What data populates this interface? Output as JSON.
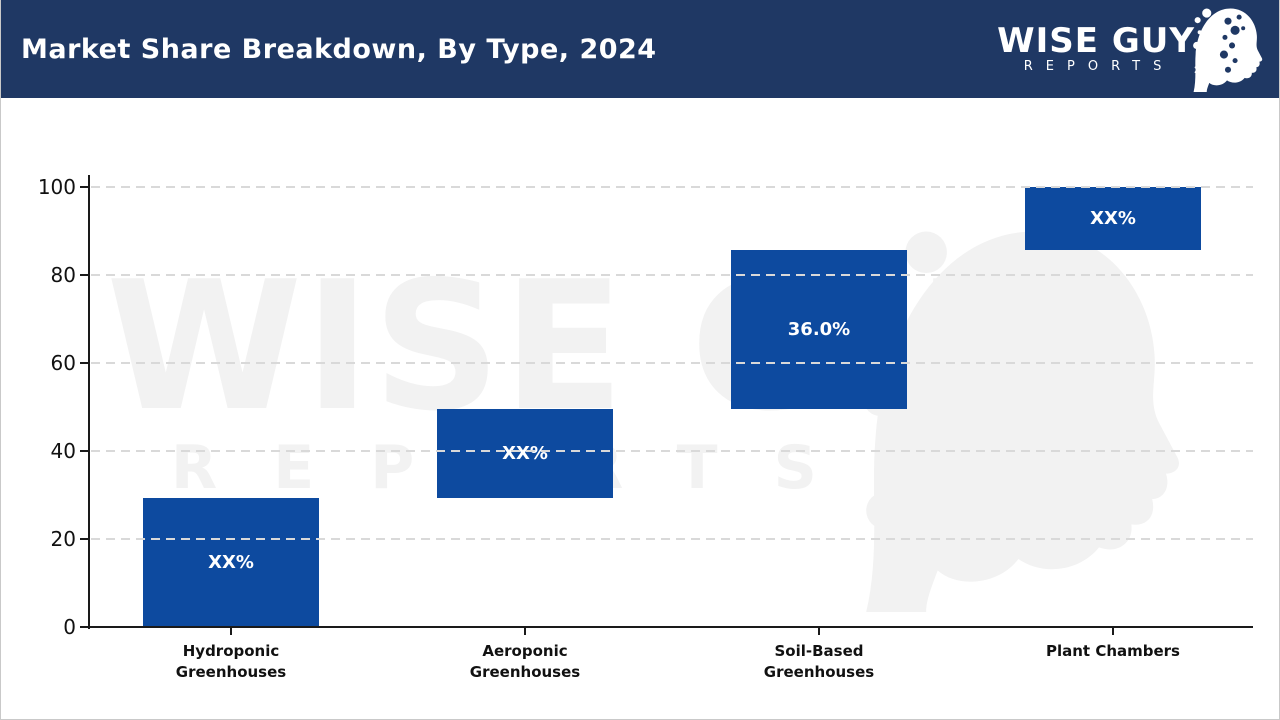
{
  "header": {
    "title": "Market Share Breakdown, By Type, 2024",
    "logo_line1": "WISE GUY",
    "logo_line2": "REPORTS"
  },
  "watermark": {
    "line1": "WISE GUY",
    "line2": "REPORTS"
  },
  "colors": {
    "header_bg": "#1f3864",
    "bar": "#0d4a9f",
    "gridline": "#d9d9d9",
    "axis": "#1a1a1a",
    "watermark": "#f2f2f2",
    "value_label": "#ffffff"
  },
  "chart_data": {
    "type": "bar",
    "subtype": "floating-waterfall",
    "title": "Market Share Breakdown, By Type, 2024",
    "categories": [
      [
        "Hydroponic",
        "Greenhouses"
      ],
      [
        "Aeroponic",
        "Greenhouses"
      ],
      [
        "Soil-Based",
        "Greenhouses"
      ],
      [
        "Plant Chambers"
      ]
    ],
    "segments": [
      {
        "category": "Hydroponic Greenhouses",
        "start": 0,
        "end": 29.3,
        "label": "XX%"
      },
      {
        "category": "Aeroponic Greenhouses",
        "start": 29.3,
        "end": 49.6,
        "label": "XX%"
      },
      {
        "category": "Soil-Based Greenhouses",
        "start": 49.6,
        "end": 85.6,
        "label": "36.0%"
      },
      {
        "category": "Plant Chambers",
        "start": 85.6,
        "end": 100,
        "label": "XX%"
      }
    ],
    "xlabel": "",
    "ylabel": "",
    "ylim": [
      0,
      100
    ],
    "yticks": [
      0,
      20,
      40,
      60,
      80,
      100
    ],
    "grid": "horizontal-dashed-over-bars",
    "legend": "none"
  }
}
